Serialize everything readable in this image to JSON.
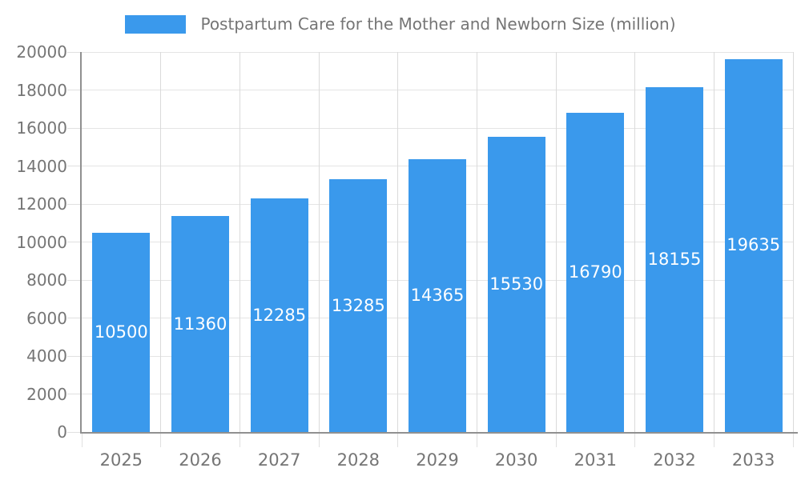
{
  "chart_data": {
    "type": "bar",
    "title": "Postpartum Care for the Mother and Newborn Size (million)",
    "legend": {
      "label": "Postpartum Care for the Mother and Newborn Size (million)",
      "position": "top-center"
    },
    "categories": [
      "2025",
      "2026",
      "2027",
      "2028",
      "2029",
      "2030",
      "2031",
      "2032",
      "2033"
    ],
    "series": [
      {
        "name": "Postpartum Care for the Mother and Newborn Size (million)",
        "values": [
          10500,
          11360,
          12285,
          13285,
          14365,
          15530,
          16790,
          18155,
          19635
        ]
      }
    ],
    "xlabel": "",
    "ylabel": "",
    "ylim": [
      0,
      20000
    ],
    "ytick_step": 2000,
    "ytick_labels": [
      "0",
      "2000",
      "4000",
      "6000",
      "8000",
      "10000",
      "12000",
      "14000",
      "16000",
      "18000",
      "20000"
    ],
    "grid": true,
    "bar_labels_shown": true,
    "colors": {
      "bar": "#3A99EC",
      "bar_label_text": "#FFFFFF",
      "axis_text": "#757575",
      "legend_text": "#757575",
      "grid_line": "#E2E2E2",
      "axis_line": "#909090",
      "background": "#FFFFFF"
    }
  }
}
